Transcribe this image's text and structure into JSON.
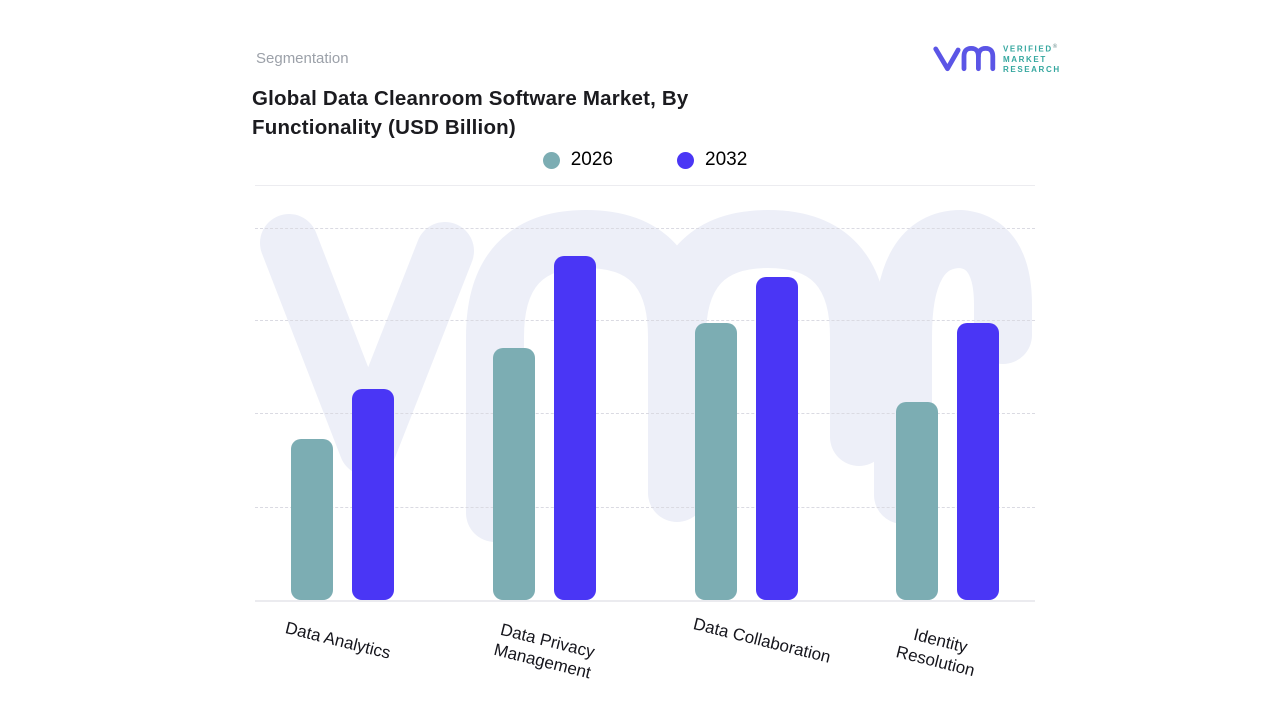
{
  "header": {
    "eyebrow": "Segmentation",
    "title": "Global Data Cleanroom Software Market, By Functionality (USD Billion)"
  },
  "logo": {
    "glyph": "vm-monogram",
    "glyph_color": "#5B55E6",
    "text_color": "#35A79F",
    "line1": "VERIFIED",
    "line2": "MARKET",
    "line3": "RESEARCH",
    "registered_mark": "®"
  },
  "chart_data": {
    "type": "bar",
    "title": "Global Data Cleanroom Software Market, By Functionality (USD Billion)",
    "categories": [
      "Data Analytics",
      "Data Privacy Management",
      "Data Collaboration",
      "Identity Resolution"
    ],
    "category_label_lines": [
      [
        "Data Analytics"
      ],
      [
        "Data Privacy",
        "Management"
      ],
      [
        "Data Collaboration"
      ],
      [
        "Identity",
        "Resolution"
      ]
    ],
    "series": [
      {
        "name": "2026",
        "color": "#7CADB3",
        "values": [
          38.5,
          60.5,
          66.5,
          47.5
        ]
      },
      {
        "name": "2032",
        "color": "#4A36F5",
        "values": [
          50.5,
          82.5,
          77.5,
          66.5
        ]
      }
    ],
    "xlabel": "",
    "ylabel": "",
    "y_axis_tick_labels_visible": false,
    "value_unit": "relative height, percent of plot area (y-axis unlabeled in source)",
    "ylim": [
      0,
      100
    ],
    "grid": "horizontal dashed, 4 lines",
    "legend_position": "top center",
    "watermark": "vm monogram, light lavender"
  }
}
